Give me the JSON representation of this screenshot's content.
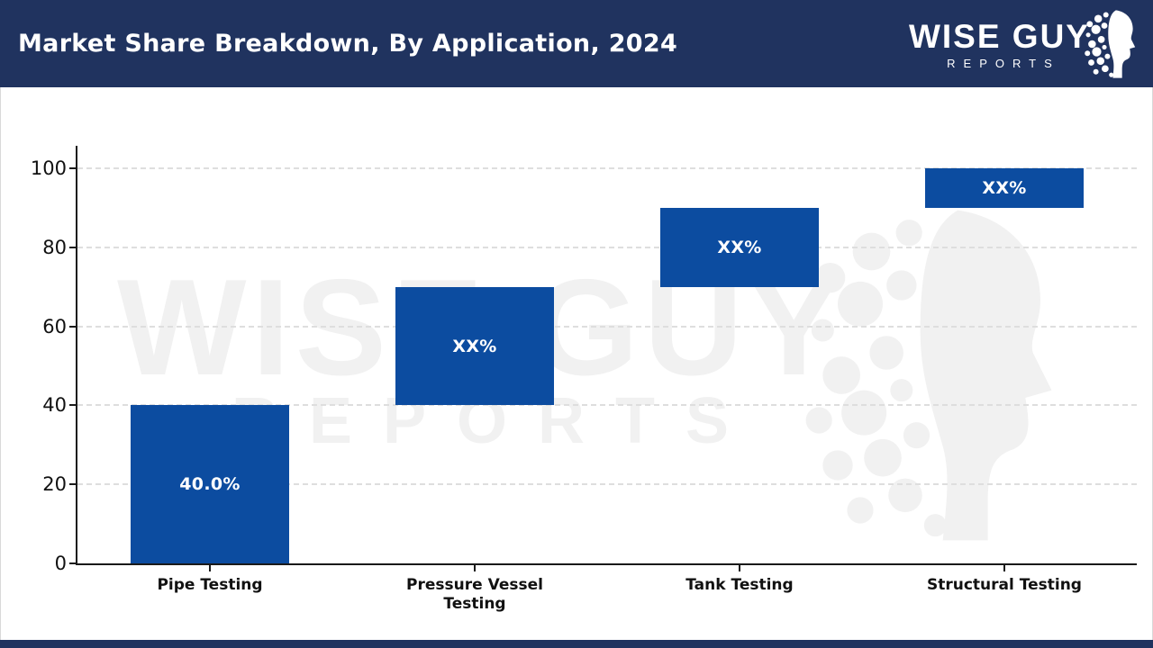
{
  "header": {
    "title": "Market Share Breakdown, By Application, 2024",
    "logo": {
      "primary": "WISE GUY",
      "secondary": "REPORTS",
      "icon": "wiseguy-head-icon"
    }
  },
  "watermark": {
    "primary": "WISE GUY",
    "secondary": "REPORTS",
    "icon": "wiseguy-head-watermark-icon"
  },
  "footer": {},
  "colors": {
    "header_bg": "#20335f",
    "footer_bg": "#20335f",
    "bar": "#0c4ca0",
    "bar_label": "#ffffff",
    "watermark": "#f1f1f1",
    "grid": "#dedede",
    "axis": "#1a1a1a"
  },
  "chart_data": {
    "type": "bar",
    "subtype": "waterfall",
    "title": "Market Share Breakdown, By Application, 2024",
    "categories": [
      "Pipe Testing",
      "Pressure Vessel Testing",
      "Tank Testing",
      "Structural Testing"
    ],
    "x_tick_labels": [
      [
        "Pipe Testing"
      ],
      [
        "Pressure Vessel",
        "Testing"
      ],
      [
        "Tank Testing"
      ],
      [
        "Structural Testing"
      ]
    ],
    "segments": [
      {
        "start": 0,
        "end": 40
      },
      {
        "start": 40,
        "end": 70
      },
      {
        "start": 70,
        "end": 90
      },
      {
        "start": 90,
        "end": 100
      }
    ],
    "values": [
      40,
      30,
      20,
      10
    ],
    "bar_labels": [
      "40.0%",
      "XX%",
      "XX%",
      "XX%"
    ],
    "xlabel": "",
    "ylabel": "",
    "ylim": [
      0,
      100
    ],
    "yticks": [
      0,
      20,
      40,
      60,
      80,
      100
    ],
    "grid": true,
    "grid_style": "dashed-horizontal",
    "legend": "none",
    "bar_color": "#0c4ca0"
  }
}
